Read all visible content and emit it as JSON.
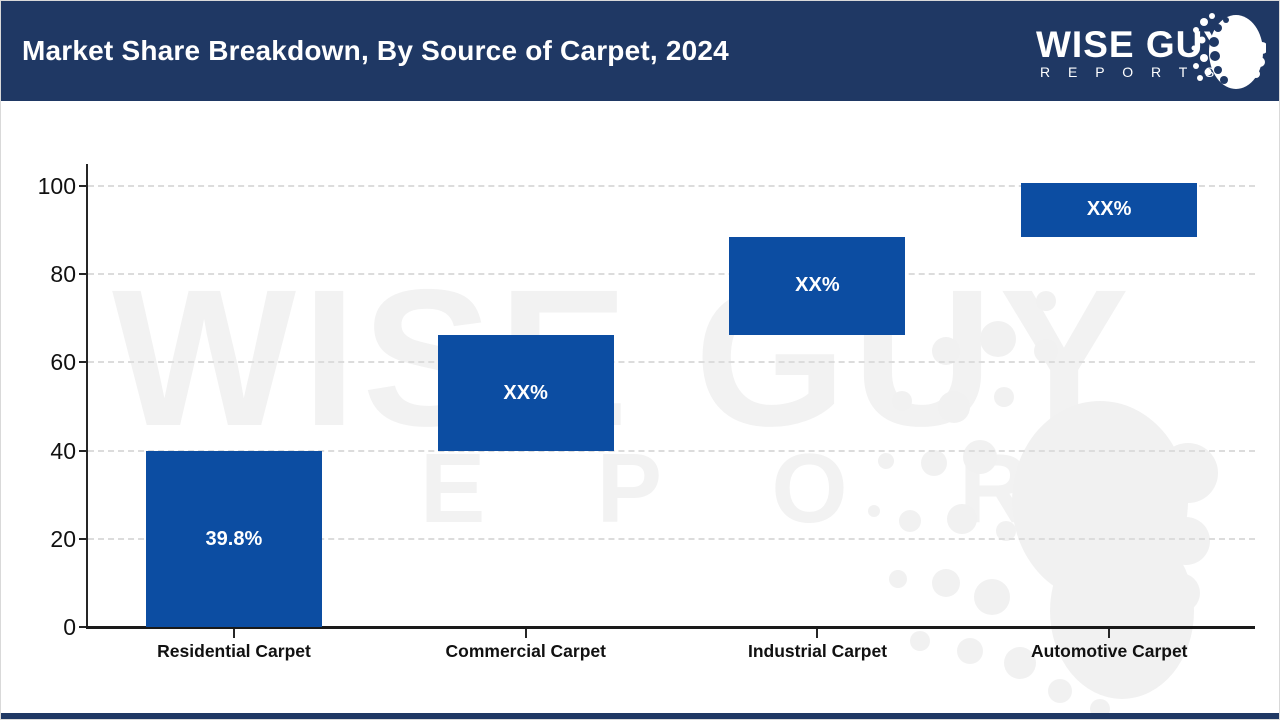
{
  "header": {
    "title": "Market Share Breakdown, By Source of Carpet, 2024",
    "logo": {
      "wordmark": "WISE GUY",
      "subtext": "R E P O R T S"
    }
  },
  "watermark": {
    "line1": "WISE GUY",
    "line2": "R E P O R T S"
  },
  "colors": {
    "header_bg": "#1F3864",
    "bar_fill": "#0C4DA2",
    "bar_label": "#FFFFFF",
    "gridline": "#DCDCDC",
    "axis": "#1A1A1A",
    "watermark": "#F2F2F2"
  },
  "chart_data": {
    "type": "bar",
    "subtype": "waterfall",
    "title": "Market Share Breakdown, By Source of Carpet, 2024",
    "categories": [
      "Residential Carpet",
      "Commercial Carpet",
      "Industrial Carpet",
      "Automotive Carpet"
    ],
    "bars": [
      {
        "category": "Residential Carpet",
        "label": "39.8%",
        "start": 0,
        "end": 39.8
      },
      {
        "category": "Commercial Carpet",
        "label": "XX%",
        "start": 39.8,
        "end": 66.3
      },
      {
        "category": "Industrial Carpet",
        "label": "XX%",
        "start": 66.3,
        "end": 88.5
      },
      {
        "category": "Automotive Carpet",
        "label": "XX%",
        "start": 88.5,
        "end": 100.7
      }
    ],
    "yticks": [
      0,
      20,
      40,
      60,
      80,
      100
    ],
    "ylim": [
      0,
      105
    ],
    "xlabel": "",
    "ylabel": "",
    "grid": "dashed-horizontal",
    "legend": "none"
  }
}
